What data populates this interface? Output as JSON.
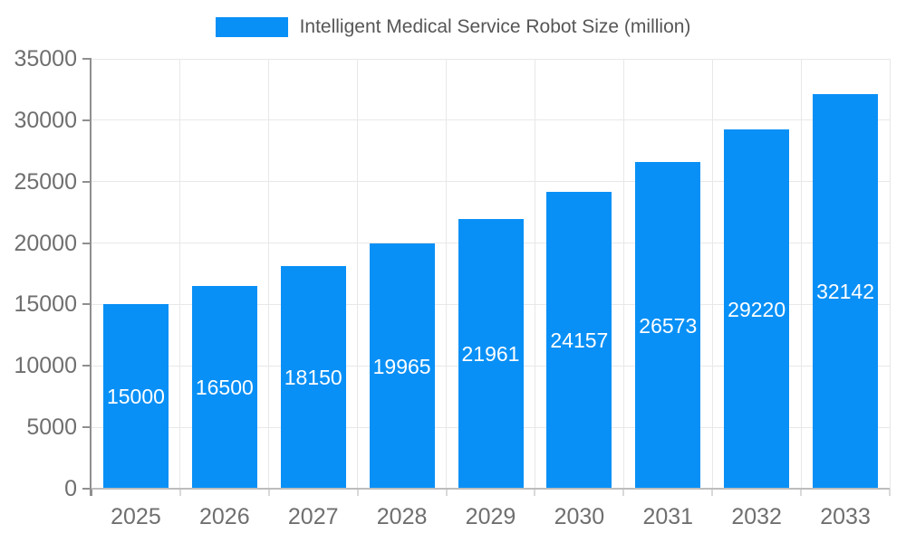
{
  "legend": {
    "label": "Intelligent Medical Service Robot Size (million)"
  },
  "colors": {
    "bar": "#0990f6",
    "grid": "#e8e8e8",
    "axis": "#8f8f8f",
    "axis_light": "#bdbdbd",
    "tick_light": "#d9d9d9",
    "text": "#6f6f6f",
    "legend_text": "#565656",
    "value_text": "#ffffff",
    "background": "#ffffff"
  },
  "chart_data": {
    "type": "bar",
    "title": "",
    "categories": [
      "2025",
      "2026",
      "2027",
      "2028",
      "2029",
      "2030",
      "2031",
      "2032",
      "2033"
    ],
    "values": [
      15000,
      16500,
      18150,
      19965,
      21961,
      24157,
      26573,
      29220,
      32142
    ],
    "series": [
      {
        "name": "Intelligent Medical Service Robot Size (million)",
        "values": [
          15000,
          16500,
          18150,
          19965,
          21961,
          24157,
          26573,
          29220,
          32142
        ]
      }
    ],
    "xlabel": "",
    "ylabel": "",
    "ylim": [
      0,
      35000
    ],
    "yticks": [
      0,
      5000,
      10000,
      15000,
      20000,
      25000,
      30000,
      35000
    ],
    "grid": true,
    "legend_position": "top",
    "value_labels": "inside-center"
  }
}
